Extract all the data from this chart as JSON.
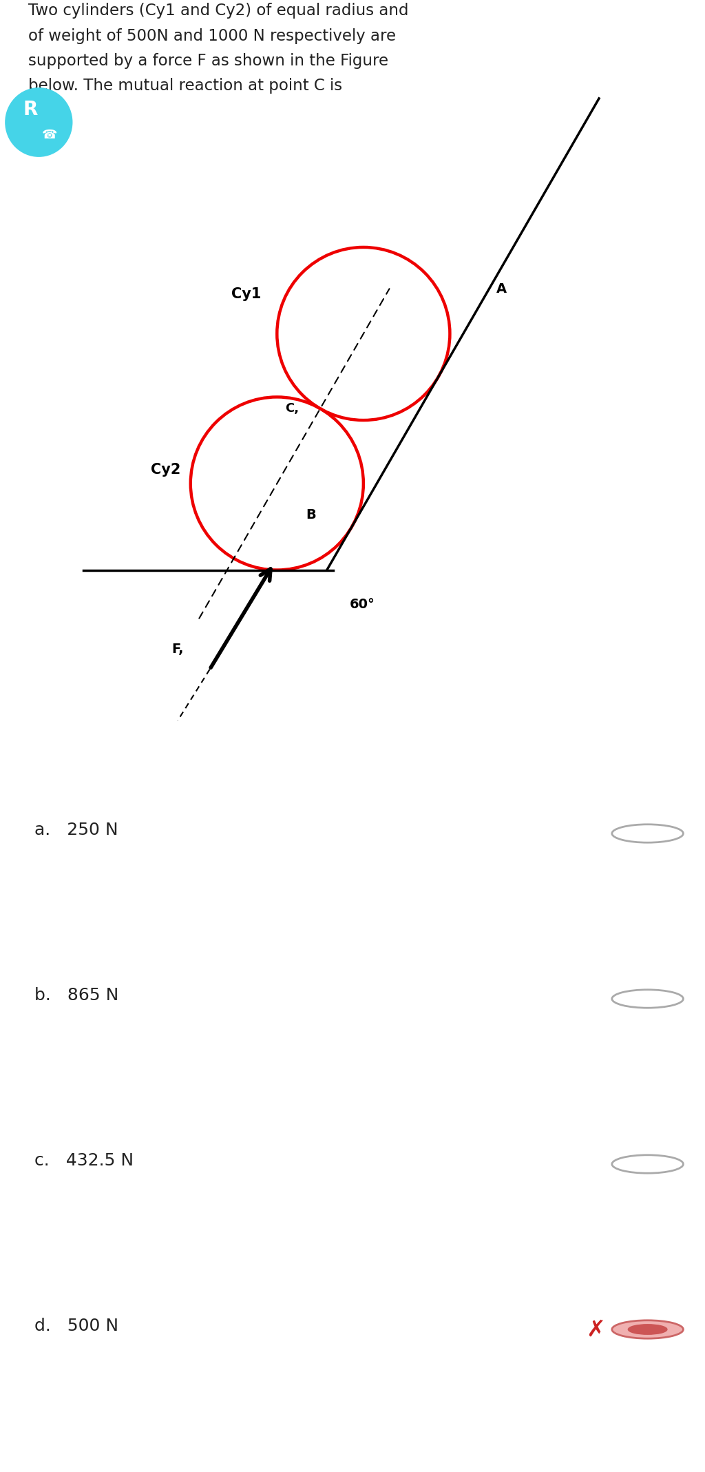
{
  "title_lines": [
    "Two cylinders (Cy1 and Cy2) of equal radius and",
    "of weight of 500N and 1000 N respectively are",
    "supported by a force F as shown in the Figure",
    "below. The mutual reaction at point C is"
  ],
  "title_fontsize": 16.5,
  "bg_color": "#ffffff",
  "options": [
    "a.   250 N",
    "b.   865 N",
    "c.   432.5 N",
    "d.   500 N"
  ],
  "option_fontsize": 18,
  "circle_color": "#ee0000",
  "circle_linewidth": 3.2,
  "angle_label": "60°",
  "label_A": "A",
  "label_B": "B",
  "label_Cy1": "Cy1",
  "label_Cy2": "Cy2",
  "label_C": "C,",
  "label_F": "F,",
  "answer_index": 3,
  "divider_color": "#dddddd",
  "radio_color": "#aaaaaa",
  "selected_outer": "#f0b0b0",
  "selected_inner": "#cc5555",
  "wrong_color": "#cc2222"
}
